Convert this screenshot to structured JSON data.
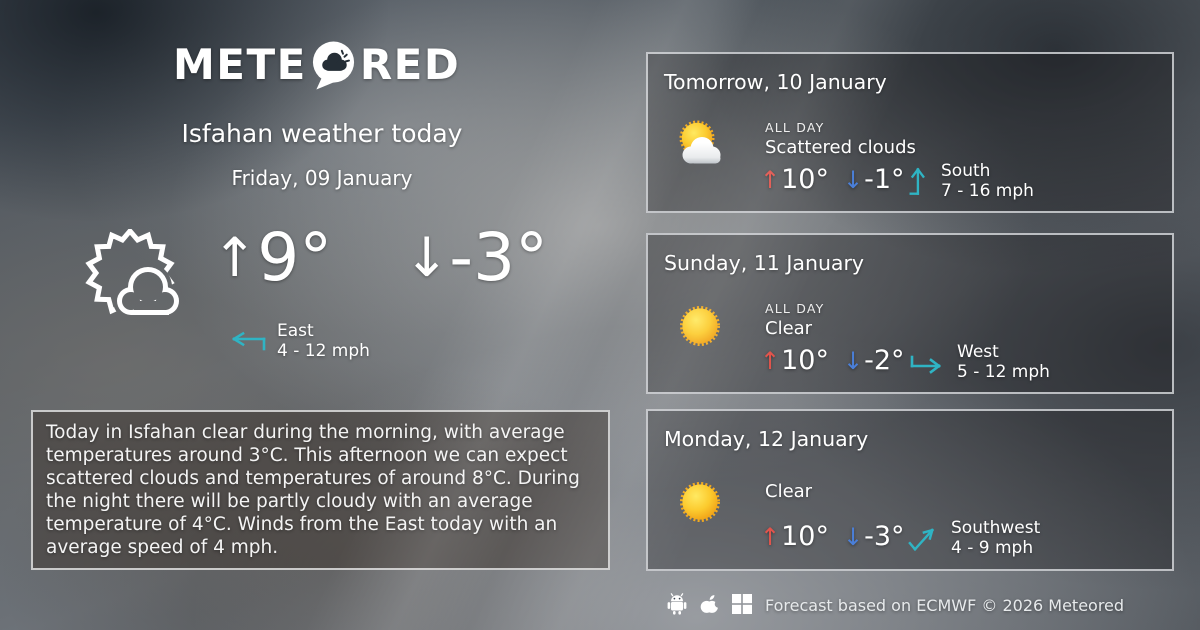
{
  "brand": {
    "logo_prefix": "METE",
    "logo_suffix": "RED",
    "bubble_icon": "cloud-speech-bubble"
  },
  "header": {
    "title": "Isfahan weather today",
    "date": "Friday, 09 January"
  },
  "today": {
    "icon": "sun-behind-cloud",
    "high": "9°",
    "low": "-3°",
    "wind": {
      "direction": "East",
      "speed": "4 - 12 mph",
      "arrow": "east"
    }
  },
  "summary": "Today in Isfahan clear during the morning, with average temperatures around 3°C. This afternoon we can expect scattered clouds and temperatures of around 8°C. During the night there will be partly cloudy with an average temperature of 4°C. Winds from the East today with an average speed of 4 mph.",
  "forecast": [
    {
      "day": "Tomorrow, 10 January",
      "period": "ALL DAY",
      "condition": "Scattered clouds",
      "icon": "sun-and-cloud",
      "high": "10°",
      "low": "-1°",
      "wind": {
        "direction": "South",
        "speed": "7 - 16 mph",
        "arrow": "south"
      }
    },
    {
      "day": "Sunday, 11 January",
      "period": "ALL DAY",
      "condition": "Clear",
      "icon": "sun",
      "high": "10°",
      "low": "-2°",
      "wind": {
        "direction": "West",
        "speed": "5 - 12 mph",
        "arrow": "west"
      }
    },
    {
      "day": "Monday, 12 January",
      "period": "",
      "condition": "Clear",
      "icon": "sun",
      "high": "10°",
      "low": "-3°",
      "wind": {
        "direction": "Southwest",
        "speed": "4 - 9 mph",
        "arrow": "southwest"
      }
    }
  ],
  "footer": {
    "attribution": "Forecast based on ECMWF © 2026 Meteored",
    "store_icons": [
      "android",
      "apple",
      "windows"
    ]
  },
  "icons": {
    "up_arrow": "↑",
    "down_arrow": "↓"
  },
  "colors": {
    "wind_teal": "#2fb4c4",
    "high_red": "#e0544c",
    "low_blue": "#4a7fd8",
    "sun_yellow": "#fccb2e"
  }
}
